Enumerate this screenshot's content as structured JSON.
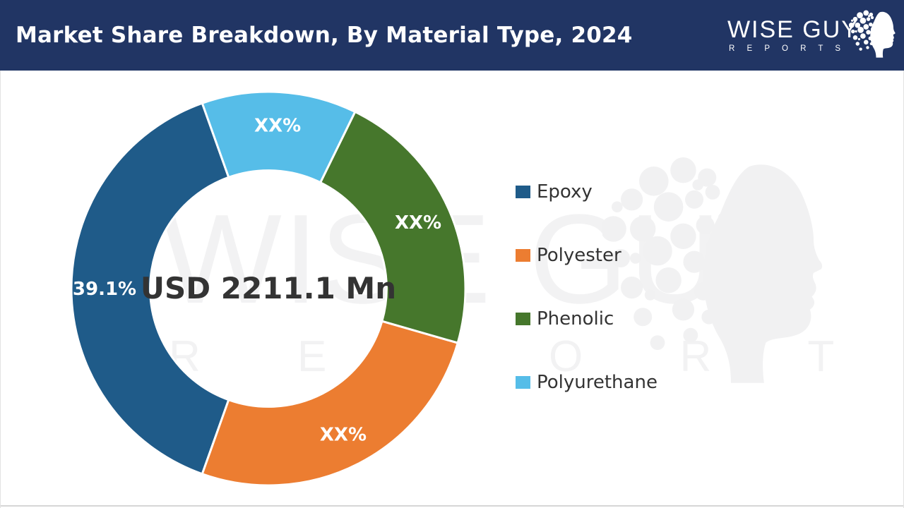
{
  "header": {
    "title": "Market Share Breakdown, By Material Type, 2024",
    "background_color": "#213564",
    "logo": {
      "name": "WISE GUY",
      "tagline": "R E P O R T S"
    }
  },
  "watermark": {
    "line1": "WISE GUY",
    "line2": "R E P O R T S"
  },
  "chart_data": {
    "type": "pie",
    "variant": "donut",
    "title": "Market Share Breakdown, By Material Type, 2024",
    "center_label": "USD 2211.1 Mn",
    "start_angle_deg": 109.62,
    "direction": "counterclockwise",
    "inner_radius_ratio": 0.6,
    "legend_position": "right",
    "segments": [
      {
        "label": "Epoxy",
        "value": 39.1,
        "display_label": "39.1%",
        "color": "#1F5B89"
      },
      {
        "label": "Polyester",
        "value": 26.0,
        "display_label": "XX%",
        "color": "#EC7D31"
      },
      {
        "label": "Phenolic",
        "value": 22.2,
        "display_label": "XX%",
        "color": "#46772C"
      },
      {
        "label": "Polyurethane",
        "value": 12.7,
        "display_label": "XX%",
        "color": "#56BDE8"
      }
    ],
    "label_color": "#ffffff",
    "separator_color": "#ffffff",
    "center_label_color": "#333333"
  }
}
